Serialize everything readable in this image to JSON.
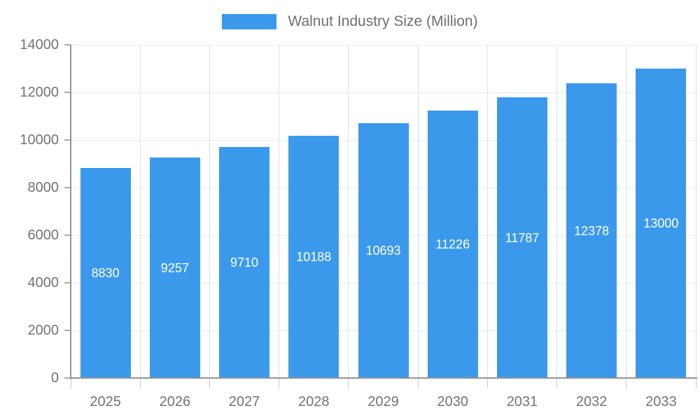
{
  "legend": {
    "label": "Walnut Industry Size (Million)"
  },
  "colors": {
    "bar": "#3B99EC",
    "value_label": "#ffffff",
    "axis_line": "#949494",
    "grid_horizontal": "#e8e8e8",
    "grid_vertical": "#e0e0e0",
    "x_tick": "#c9c9c9",
    "y_tick": "#ababab",
    "tick_text": "#737373"
  },
  "chart_data": {
    "type": "bar",
    "title": "Walnut Industry Size (Million)",
    "categories": [
      "2025",
      "2026",
      "2027",
      "2028",
      "2029",
      "2030",
      "2031",
      "2032",
      "2033"
    ],
    "values": [
      8830,
      9257,
      9710,
      10188,
      10693,
      11226,
      11787,
      12378,
      13000
    ],
    "series": [
      {
        "name": "Walnut Industry Size (Million)",
        "values": [
          8830,
          9257,
          9710,
          10188,
          10693,
          11226,
          11787,
          12378,
          13000
        ]
      }
    ],
    "xlabel": "",
    "ylabel": "",
    "ylim": [
      0,
      14000
    ],
    "yticks": [
      0,
      2000,
      4000,
      6000,
      8000,
      10000,
      12000,
      14000
    ],
    "grid": true,
    "legend_position": "top",
    "value_labels": "inside-center"
  }
}
